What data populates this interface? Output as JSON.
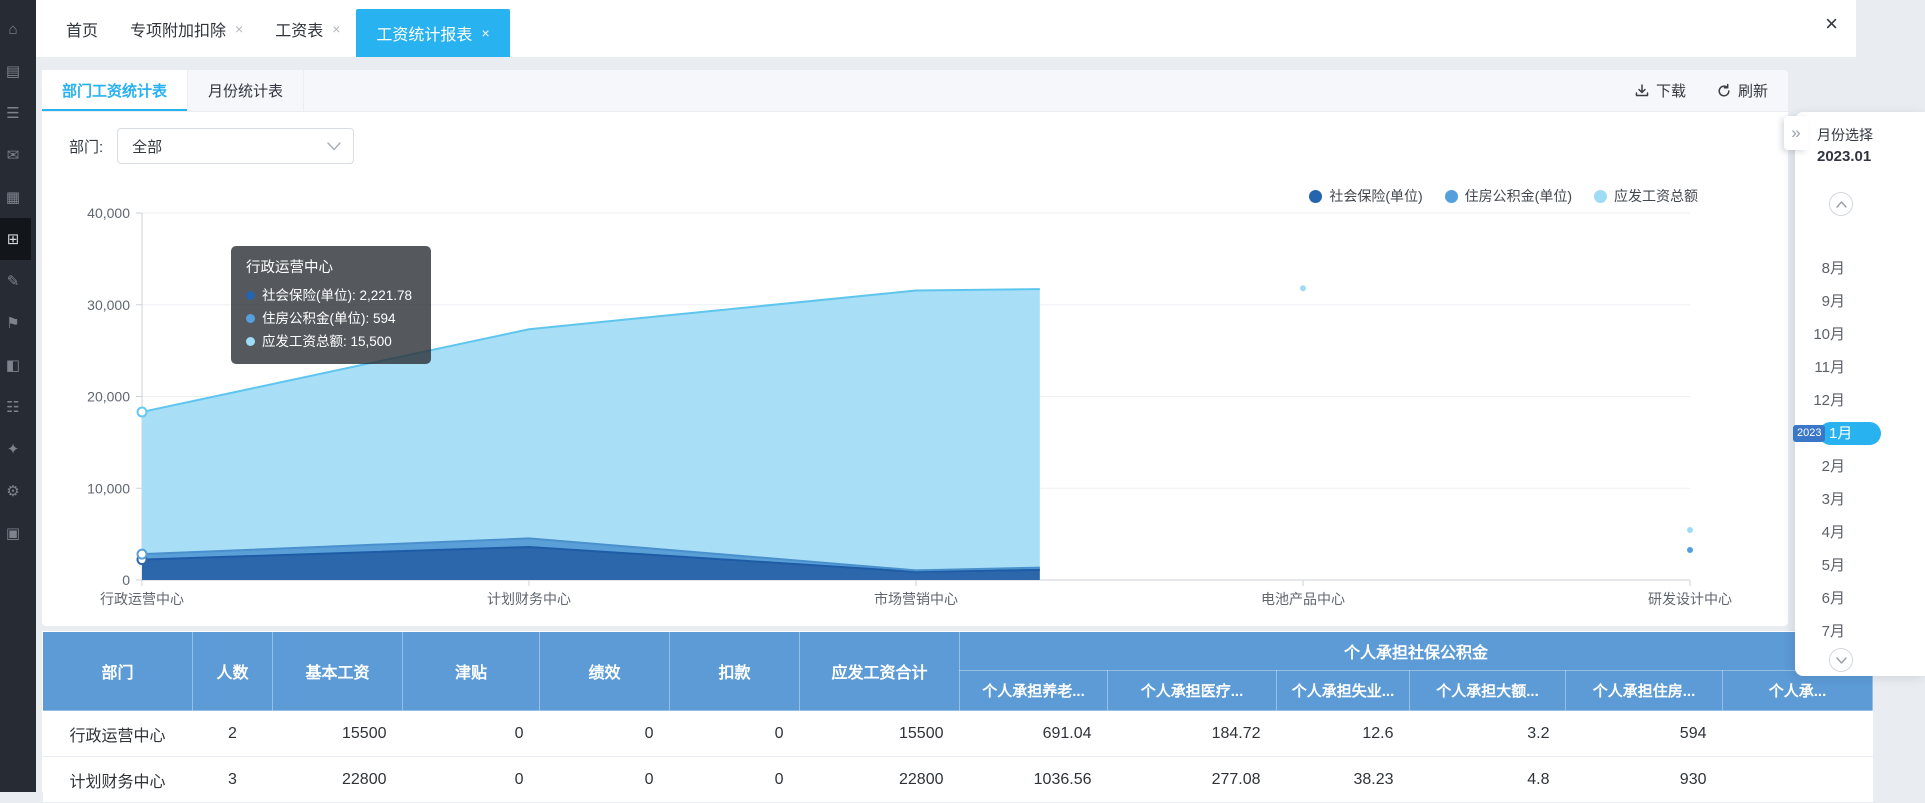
{
  "colors": {
    "accent": "#29b2f0",
    "table_header": "#5c9bd6",
    "sidebar_bg": "#272b33",
    "year_badge_blue": "#3a77c9"
  },
  "topbar": {
    "tabs": [
      {
        "label": "首页",
        "closable": false,
        "active": false
      },
      {
        "label": "专项附加扣除",
        "closable": true,
        "active": false
      },
      {
        "label": "工资表",
        "closable": true,
        "active": false
      },
      {
        "label": "工资统计报表",
        "closable": true,
        "active": true
      }
    ],
    "close_label": "×"
  },
  "subtabs": [
    {
      "label": "部门工资统计表",
      "active": true
    },
    {
      "label": "月份统计表",
      "active": false
    }
  ],
  "actions": {
    "download": "下载",
    "refresh": "刷新"
  },
  "filter": {
    "label": "部门:",
    "value": "全部"
  },
  "legend": [
    {
      "label": "社会保险(单位)",
      "color": "#2465ad"
    },
    {
      "label": "住房公积金(单位)",
      "color": "#569fdd"
    },
    {
      "label": "应发工资总额",
      "color": "#9edcf6"
    }
  ],
  "tooltip": {
    "title": "行政运营中心",
    "rows": [
      {
        "label": "社会保险(单位)",
        "value": "2,221.78",
        "color": "#2465ad"
      },
      {
        "label": "住房公积金(单位)",
        "value": "594",
        "color": "#569fdd"
      },
      {
        "label": "应发工资总额",
        "value": "15,500",
        "color": "#9edcf6"
      }
    ]
  },
  "chart_data": {
    "type": "area",
    "stacked": true,
    "categories": [
      "行政运营中心",
      "计划财务中心",
      "市场营销中心",
      "电池产品中心",
      "研发设计中心"
    ],
    "series": [
      {
        "name": "社会保险(单位)",
        "color": "#2c66ab",
        "line_color": "#1f5ca6",
        "values": [
          2221.78,
          3600,
          900,
          null,
          null
        ]
      },
      {
        "name": "住房公积金(单位)",
        "color": "#5a9fd8",
        "line_color": "#4a90cc",
        "values": [
          594,
          930,
          150,
          null,
          null
        ]
      },
      {
        "name": "应发工资总额",
        "color": "#a8dff7",
        "line_color": "#5ec5ee",
        "values": [
          15500,
          22800,
          30500,
          null,
          null
        ]
      }
    ],
    "ylim": [
      0,
      40000
    ],
    "yticks": [
      0,
      10000,
      20000,
      30000,
      40000
    ],
    "ytick_labels": [
      "0",
      "10,000",
      "20,000",
      "30,000",
      "40,000"
    ],
    "legend_position": "top-right",
    "grid": true,
    "render_cut_x": 2.32,
    "cut_edge_stack_values": [
      1100,
      1350,
      31700
    ],
    "emphasis_markers": [
      {
        "x": 0,
        "stack_y": 2221.78,
        "color": "#2c66ab"
      },
      {
        "x": 0,
        "stack_y": 2815.78,
        "color": "#5a9fd8"
      },
      {
        "x": 0,
        "stack_y": 18315.78,
        "color": "#66c8ef"
      }
    ],
    "stray_dots": [
      {
        "x": 3,
        "stack_y": 31800,
        "color": "#9edcf6"
      },
      {
        "x": 4,
        "stack_y": 5450,
        "color": "#9edcf6"
      },
      {
        "x": 4,
        "stack_y": 3270,
        "color": "#569fdd"
      }
    ]
  },
  "month_panel": {
    "collapse_icon": "»",
    "title": "月份选择",
    "period": "2023.01",
    "year_badge": "2023",
    "selected_month": "1月",
    "months": [
      "8月",
      "9月",
      "10月",
      "11月",
      "12月",
      "1月",
      "2月",
      "3月",
      "4月",
      "5月",
      "6月",
      "7月"
    ]
  },
  "table": {
    "columns": [
      {
        "label": "部门",
        "width": 150,
        "align": "center"
      },
      {
        "label": "人数",
        "width": 80,
        "align": "center"
      },
      {
        "label": "基本工资",
        "width": 130,
        "align": "right"
      },
      {
        "label": "津贴",
        "width": 137,
        "align": "right"
      },
      {
        "label": "绩效",
        "width": 130,
        "align": "right"
      },
      {
        "label": "扣款",
        "width": 130,
        "align": "right"
      },
      {
        "label": "应发工资合计",
        "width": 160,
        "align": "right"
      }
    ],
    "group_header": "个人承担社保公积金",
    "group_columns": [
      {
        "label": "个人承担养老...",
        "width": 148,
        "align": "right"
      },
      {
        "label": "个人承担医疗...",
        "width": 169,
        "align": "right"
      },
      {
        "label": "个人承担失业...",
        "width": 133,
        "align": "right"
      },
      {
        "label": "个人承担大额...",
        "width": 156,
        "align": "right"
      },
      {
        "label": "个人承担住房...",
        "width": 157,
        "align": "right"
      },
      {
        "label": "个人承...",
        "width": 150,
        "align": "right"
      }
    ],
    "rows": [
      [
        "行政运营中心",
        "2",
        "15500",
        "0",
        "0",
        "0",
        "15500",
        "691.04",
        "184.72",
        "12.6",
        "3.2",
        "594",
        ""
      ],
      [
        "计划财务中心",
        "3",
        "22800",
        "0",
        "0",
        "0",
        "22800",
        "1036.56",
        "277.08",
        "38.23",
        "4.8",
        "930",
        ""
      ]
    ]
  }
}
